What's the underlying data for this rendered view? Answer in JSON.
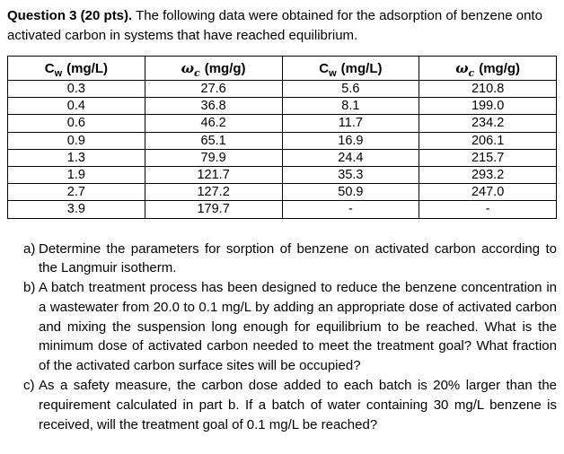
{
  "page": {
    "question_label": "Question 3 (20 pts).",
    "intro_text": "The following data were obtained for the adsorption of benzene onto activated carbon in systems that have reached equilibrium."
  },
  "table": {
    "headers": [
      {
        "base": "C",
        "sub": "w",
        "unit": "(mg/L)"
      },
      {
        "base": "ω",
        "sub": "c",
        "unit": "(mg/g)"
      },
      {
        "base": "C",
        "sub": "w",
        "unit": "(mg/L)"
      },
      {
        "base": "ω",
        "sub": "c",
        "unit": "(mg/g)"
      }
    ],
    "rows": [
      [
        "0.3",
        "27.6",
        "5.6",
        "210.8"
      ],
      [
        "0.4",
        "36.8",
        "8.1",
        "199.0"
      ],
      [
        "0.6",
        "46.2",
        "11.7",
        "234.2"
      ],
      [
        "0.9",
        "65.1",
        "16.9",
        "206.1"
      ],
      [
        "1.3",
        "79.9",
        "24.4",
        "215.7"
      ],
      [
        "1.9",
        "121.7",
        "35.3",
        "293.2"
      ],
      [
        "2.7",
        "127.2",
        "50.9",
        "247.0"
      ],
      [
        "3.9",
        "179.7",
        "-",
        "-"
      ]
    ]
  },
  "questions": [
    {
      "marker": "a)",
      "text": "Determine the parameters for sorption of benzene on activated carbon according to the Langmuir isotherm."
    },
    {
      "marker": "b)",
      "text": "A batch treatment process has been designed to reduce the benzene concentration in a wastewater from 20.0 to 0.1 mg/L by adding an appropriate dose of activated carbon and mixing the suspension long enough for equilibrium to be reached. What is the minimum dose of activated carbon needed to meet the treatment goal? What fraction of the activated carbon surface sites will be occupied?"
    },
    {
      "marker": "c)",
      "text": "As a safety measure, the carbon dose added to each batch is 20% larger than the requirement calculated in part b. If a batch of water containing 30 mg/L benzene is received, will the treatment goal of 0.1 mg/L be reached?"
    }
  ]
}
